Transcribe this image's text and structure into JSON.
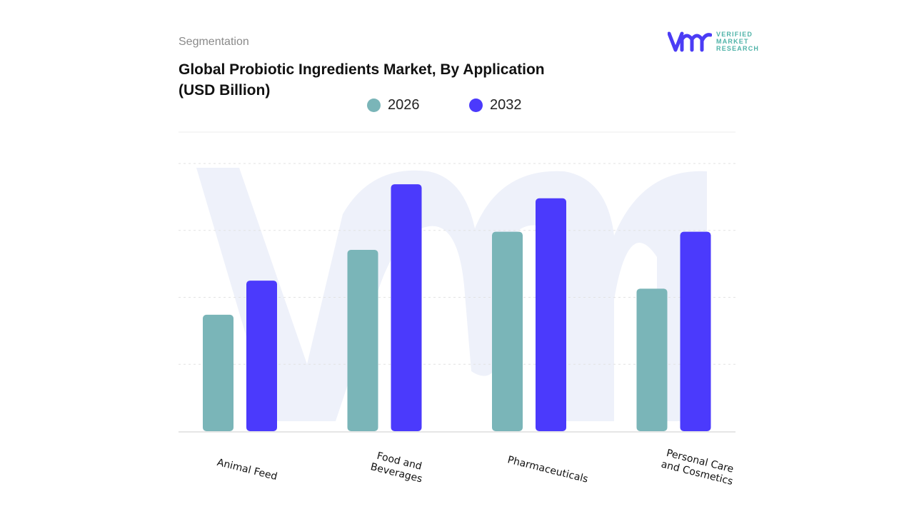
{
  "header": {
    "segment_label": "Segmentation"
  },
  "logo": {
    "line1": "VERIFIED",
    "line2": "MARKET",
    "line3": "RESEARCH",
    "mark": "vmr",
    "color_mark": "#4b3cf5",
    "color_text": "#4fb3a8"
  },
  "chart_data": {
    "type": "bar",
    "title": "Global Probiotic Ingredients Market, By Application (USD Billion)",
    "categories": [
      "Animal Feed",
      "Food and Beverages",
      "Pharmaceuticals",
      "Personal Care and Cosmetics"
    ],
    "series": [
      {
        "name": "2026",
        "color": "#7ab5b8",
        "values": [
          1.74,
          2.71,
          2.98,
          2.13
        ]
      },
      {
        "name": "2032",
        "color": "#4b3afc",
        "values": [
          2.25,
          3.69,
          3.48,
          2.98
        ]
      }
    ],
    "ylim": [
      0,
      4.47
    ],
    "grid": true,
    "legend_position": "top-center",
    "xlabel": "",
    "ylabel": ""
  }
}
